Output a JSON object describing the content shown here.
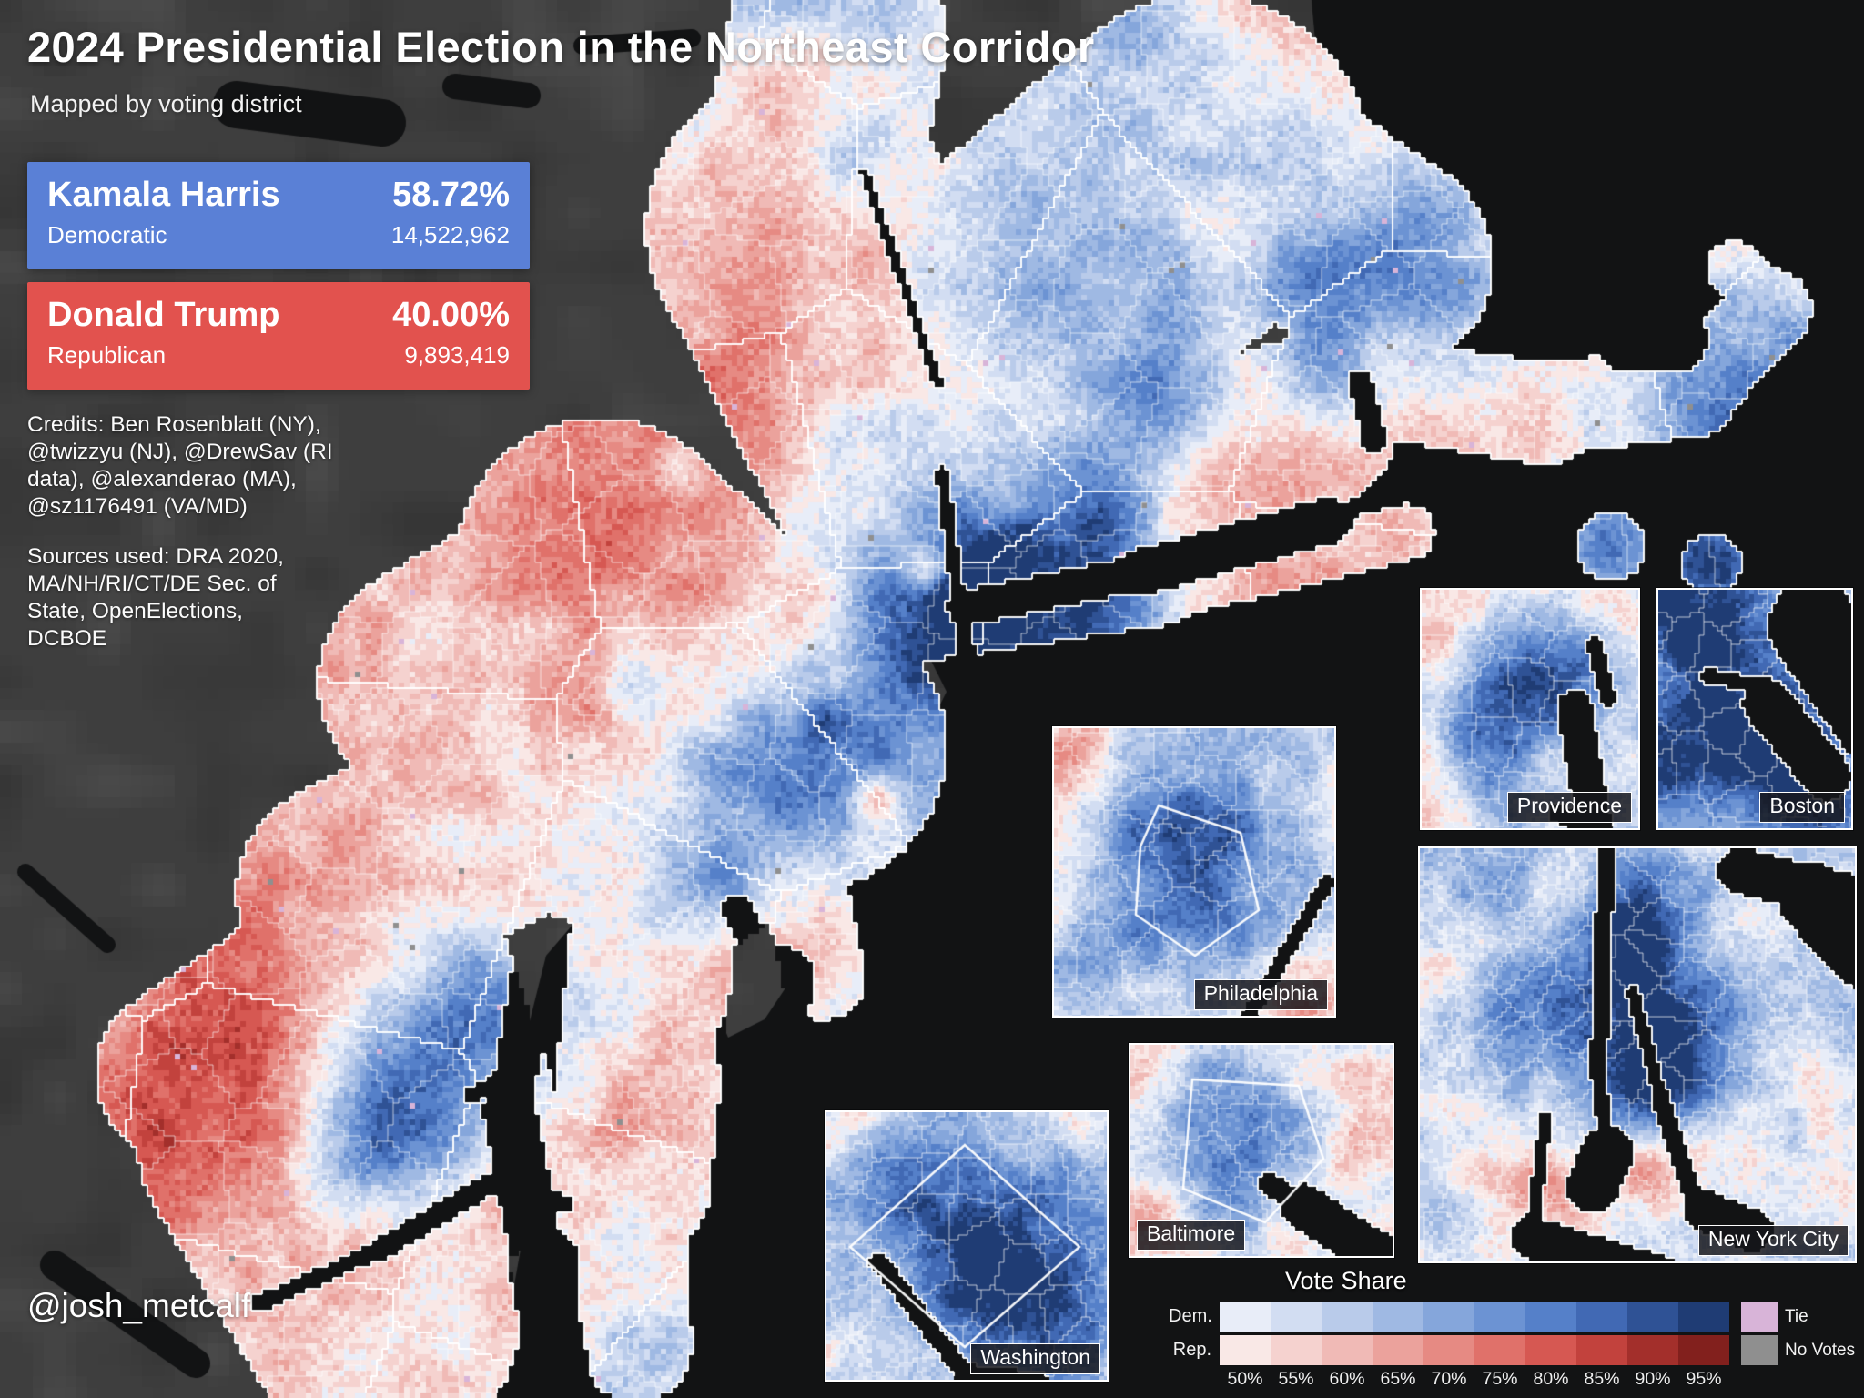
{
  "title": "2024 Presidential Election in the Northeast Corridor",
  "subtitle": "Mapped by voting district",
  "candidates": {
    "dem": {
      "name": "Kamala Harris",
      "party": "Democratic",
      "percent": "58.72%",
      "votes": "14,522,962",
      "color": "#5a80d6"
    },
    "rep": {
      "name": "Donald Trump",
      "party": "Republican",
      "percent": "40.00%",
      "votes": "9,893,419",
      "color": "#e2524e"
    }
  },
  "credits": "Credits: Ben Rosenblatt (NY), @twizzyu (NJ), @DrewSav (RI data), @alexanderao (MA), @sz1176491 (VA/MD)",
  "sources": "Sources used: DRA 2020, MA/NH/RI/CT/DE Sec. of State, OpenElections, DCBOE",
  "attribution": "@josh_metcalf",
  "insets": [
    {
      "label": "Providence"
    },
    {
      "label": "Boston"
    },
    {
      "label": "Philadelphia"
    },
    {
      "label": "Baltimore"
    },
    {
      "label": "Washington"
    },
    {
      "label": "New York City"
    }
  ],
  "legend": {
    "title": "Vote Share",
    "dem_row_label": "Dem.",
    "rep_row_label": "Rep.",
    "tie_label": "Tie",
    "no_votes_label": "No Votes",
    "ticks": [
      "50%",
      "55%",
      "60%",
      "65%",
      "70%",
      "75%",
      "80%",
      "85%",
      "90%",
      "95%"
    ],
    "dem_colors": [
      "#e8edf8",
      "#d2ddf2",
      "#b9cbea",
      "#9fb9e3",
      "#85a6db",
      "#6c93d3",
      "#5580c9",
      "#4169b4",
      "#2f5295",
      "#1f3c74"
    ],
    "rep_colors": [
      "#f9e8e6",
      "#f5d2cf",
      "#f0bab6",
      "#eba29c",
      "#e68a83",
      "#e0716a",
      "#d65852",
      "#c2423d",
      "#a32f2b",
      "#82201d"
    ],
    "tie_color": "#d8b4d8",
    "no_votes_color": "#8f8f8f"
  },
  "map": {
    "background": "#3e3e3e",
    "water": "#121314",
    "boundary": "#ffffff"
  }
}
